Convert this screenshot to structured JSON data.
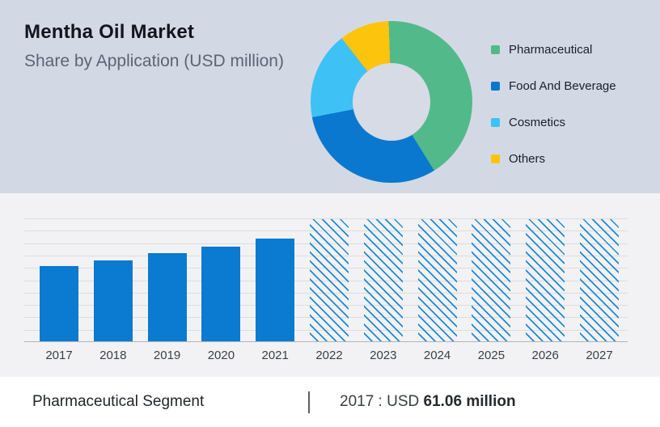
{
  "header": {
    "title": "Mentha Oil Market",
    "subtitle": "Share by Application (USD million)"
  },
  "palette": {
    "top_panel_bg": "#d3d9e4",
    "chart_panel_bg": "#f2f2f4",
    "footer_bg": "#ffffff",
    "gridline": "#dddddf",
    "axis_line": "#b0b3b8"
  },
  "chart_data": [
    {
      "type": "pie",
      "subtype": "donut",
      "title": "Share by Application (USD million)",
      "legend_position": "right",
      "start_angle_deg": -2,
      "segments": [
        {
          "label": "Pharmaceutical",
          "share_pct": 41.7,
          "color": "#52b98b"
        },
        {
          "label": "Food And Beverage",
          "share_pct": 30.8,
          "color": "#0b78cf"
        },
        {
          "label": "Cosmetics",
          "share_pct": 17.5,
          "color": "#3ec1f4"
        },
        {
          "label": "Others",
          "share_pct": 10.0,
          "color": "#fcc40d"
        }
      ]
    },
    {
      "type": "bar",
      "title": "Pharmaceutical Segment (USD million)",
      "xlabel": "",
      "ylabel": "USD million",
      "ylim": [
        0,
        100
      ],
      "gridline_step": 10,
      "grid": true,
      "categories": [
        "2017",
        "2018",
        "2019",
        "2020",
        "2021",
        "2022",
        "2023",
        "2024",
        "2025",
        "2026",
        "2027"
      ],
      "values": [
        61.06,
        65.7,
        71.3,
        76.6,
        83.0,
        null,
        null,
        null,
        null,
        null,
        null
      ],
      "forecast_masked_from": "2022",
      "masked_bar_display_value": 98.5,
      "bar_color": "#0b7ad1",
      "hatch_color": "#2089d4"
    }
  ],
  "footer": {
    "segment_label": "Pharmaceutical Segment",
    "divider": "|",
    "stat_prefix": "2017 : USD",
    "stat_value": "61.06 million"
  }
}
